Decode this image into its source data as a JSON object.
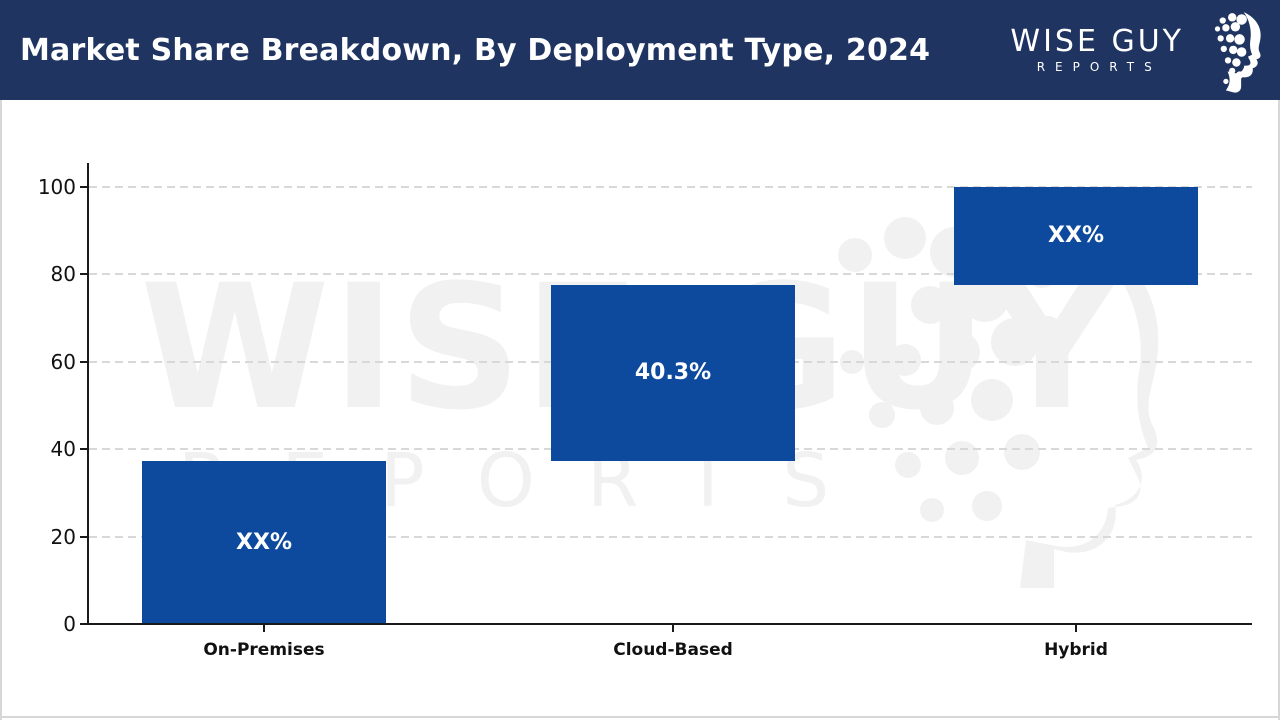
{
  "header": {
    "title": "Market Share Breakdown, By Deployment Type, 2024",
    "bg_color": "#1f3461",
    "logo": {
      "wordmark": "WISE GUY",
      "subtext": "REPORTS"
    }
  },
  "watermark": {
    "line1": "WISE GUY",
    "line2": "REPORTS"
  },
  "chart_data": {
    "type": "bar",
    "subtype": "waterfall",
    "title": "Market Share Breakdown, By Deployment Type, 2024",
    "categories": [
      "On-Premises",
      "Cloud-Based",
      "Hybrid"
    ],
    "segments": [
      {
        "category": "On-Premises",
        "start": 0,
        "end": 37.3,
        "value": 37.3,
        "label": "XX%"
      },
      {
        "category": "Cloud-Based",
        "start": 37.3,
        "end": 77.6,
        "value": 40.3,
        "label": "40.3%"
      },
      {
        "category": "Hybrid",
        "start": 77.6,
        "end": 100,
        "value": 22.4,
        "label": "XX%"
      }
    ],
    "yticks": [
      0,
      20,
      40,
      60,
      80,
      100
    ],
    "ylim": [
      0,
      100
    ],
    "xlabel": "",
    "ylabel": "",
    "grid": "horizontal-dashed",
    "legend": "none",
    "bar_color": "#0d4a9e",
    "bar_label_color": "#ffffff",
    "axis_color": "#1a1a1a",
    "grid_color": "#d8d8d8"
  }
}
